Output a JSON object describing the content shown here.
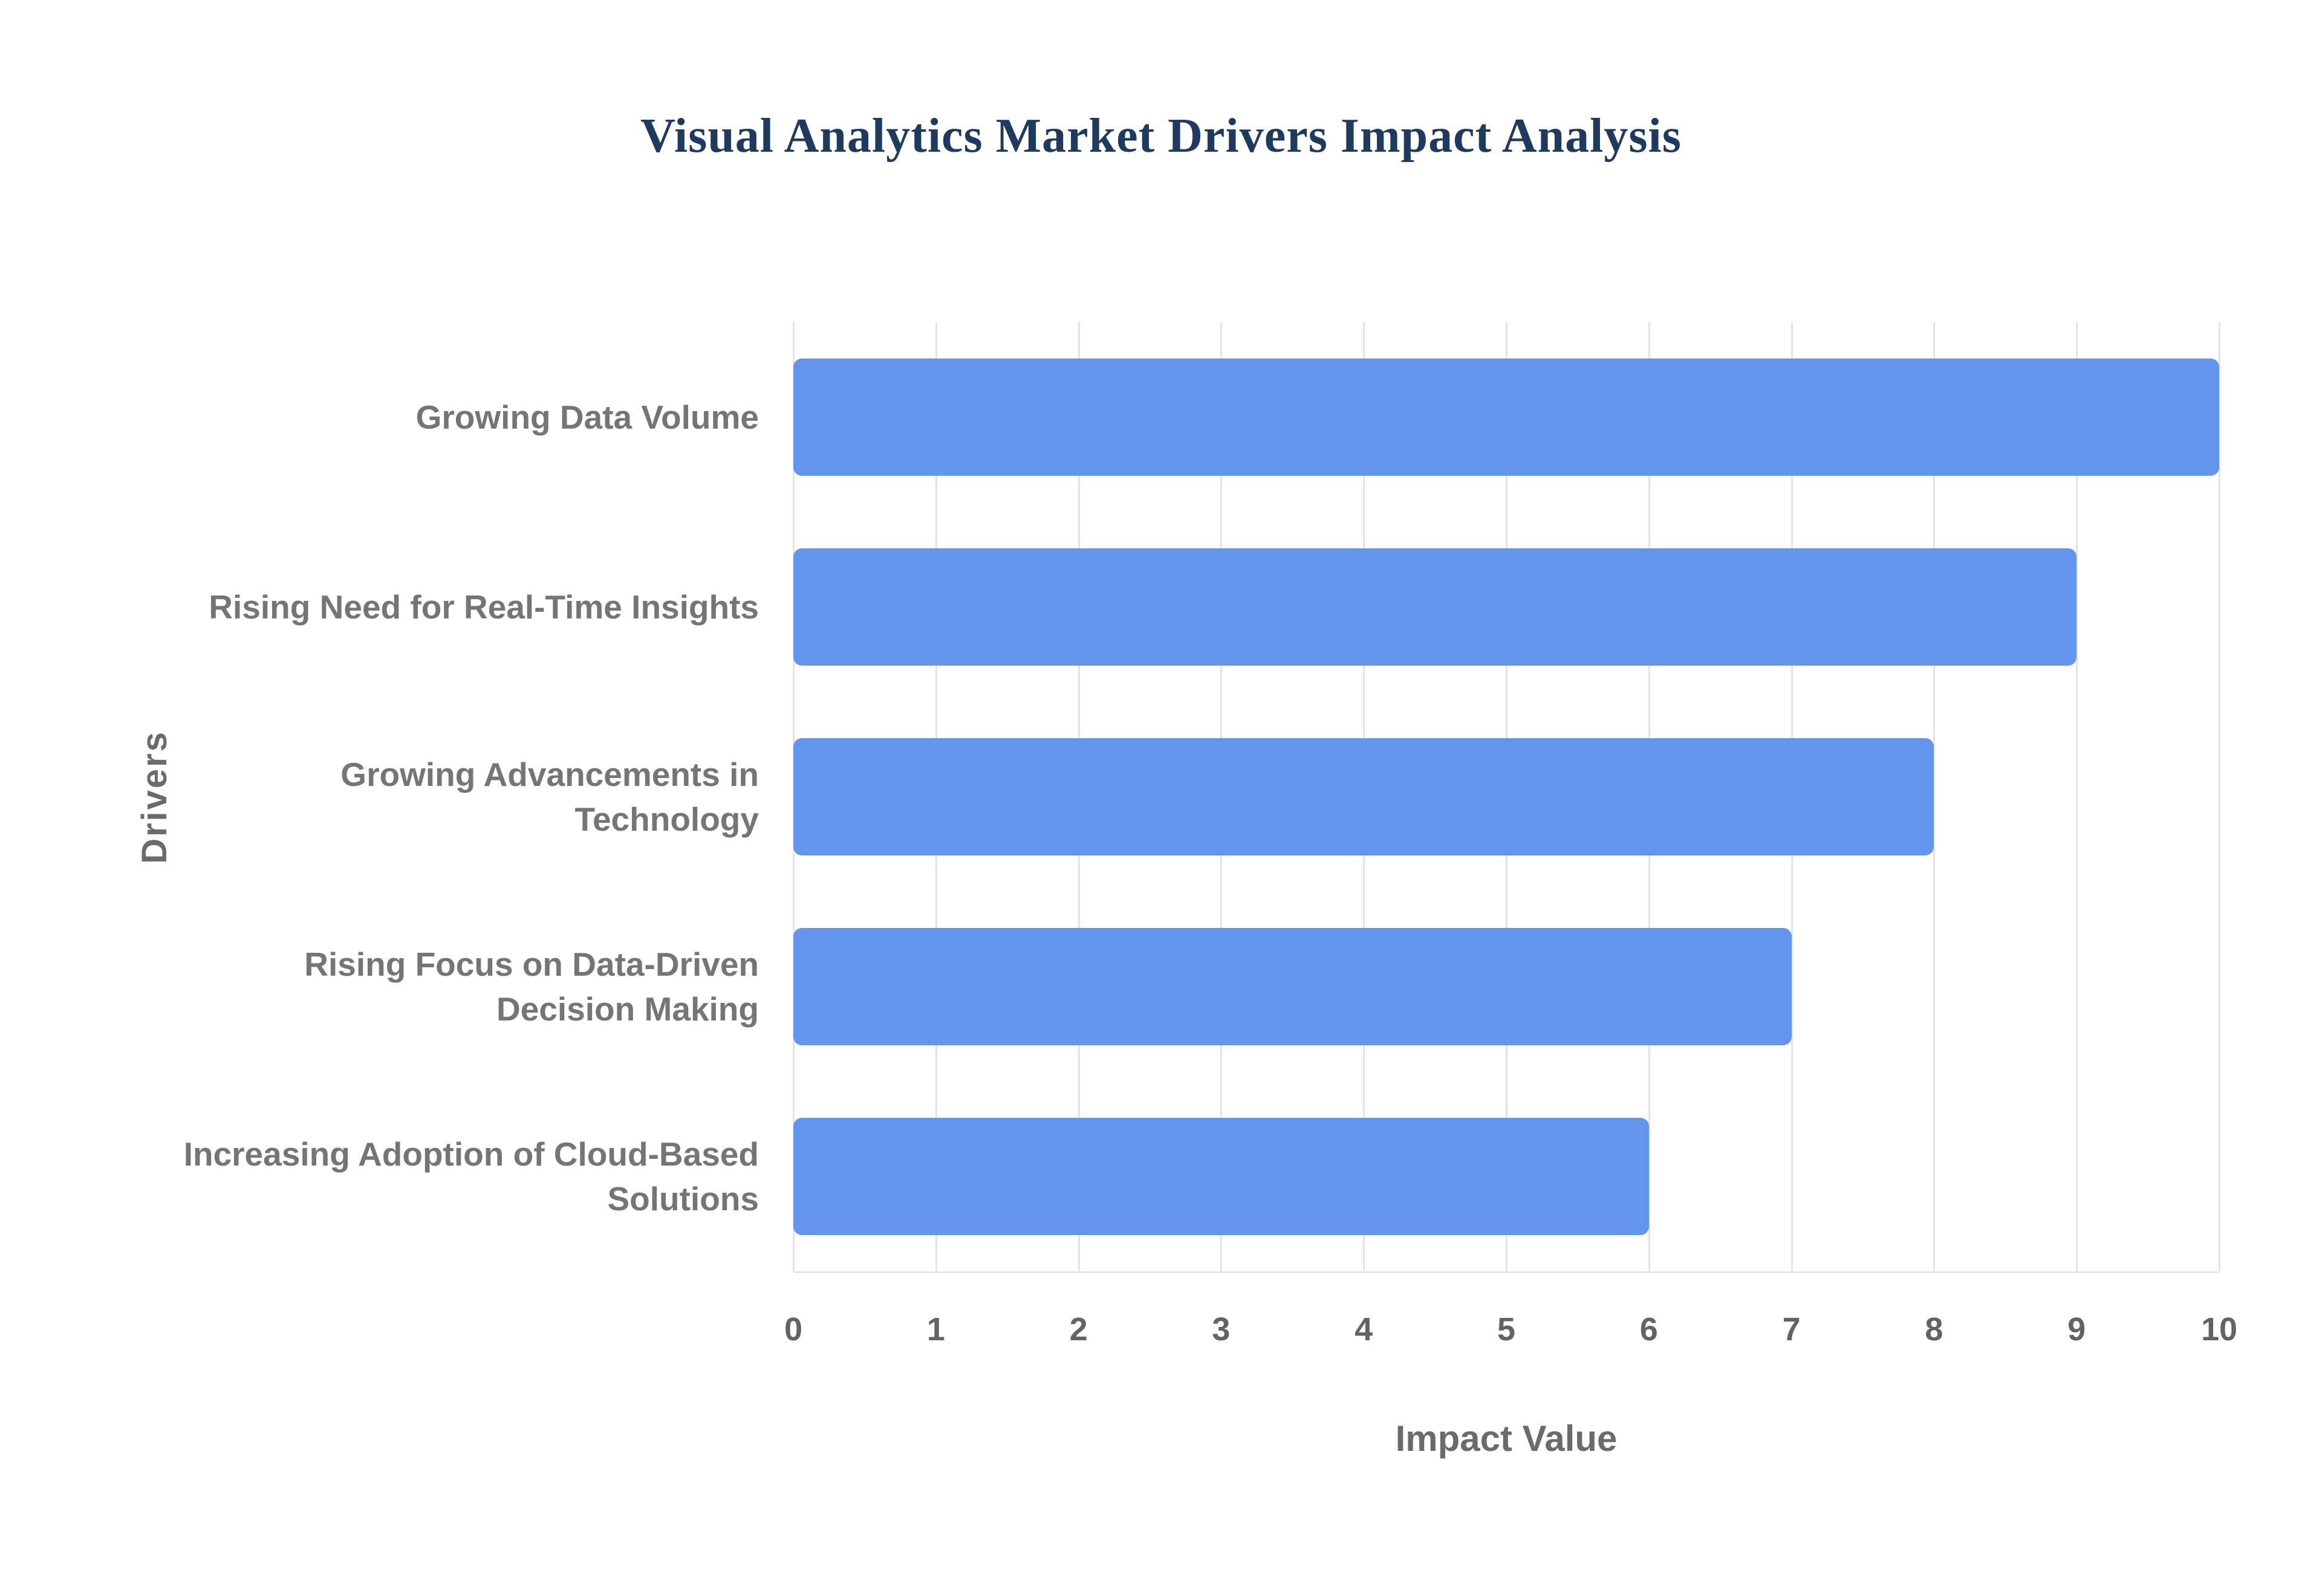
{
  "chart_data": {
    "type": "bar",
    "orientation": "horizontal",
    "title": "Visual Analytics Market Drivers Impact Analysis",
    "categories": [
      "Growing Data Volume",
      "Rising Need for Real-Time Insights",
      "Growing Advancements in Technology",
      "Rising Focus on Data-Driven Decision Making",
      "Increasing Adoption of Cloud-Based Solutions"
    ],
    "values": [
      10,
      9,
      8,
      7,
      6
    ],
    "xlabel": "Impact Value",
    "ylabel": "Drivers",
    "xlim": [
      0,
      10
    ],
    "xticks": [
      0,
      1,
      2,
      3,
      4,
      5,
      6,
      7,
      8,
      9,
      10
    ],
    "grid": "vertical",
    "legend": "none",
    "bar_color": "#6495ED",
    "title_color": "#1f3a5f",
    "label_color": "#757575",
    "gridline_color": "#e4e4e4"
  }
}
